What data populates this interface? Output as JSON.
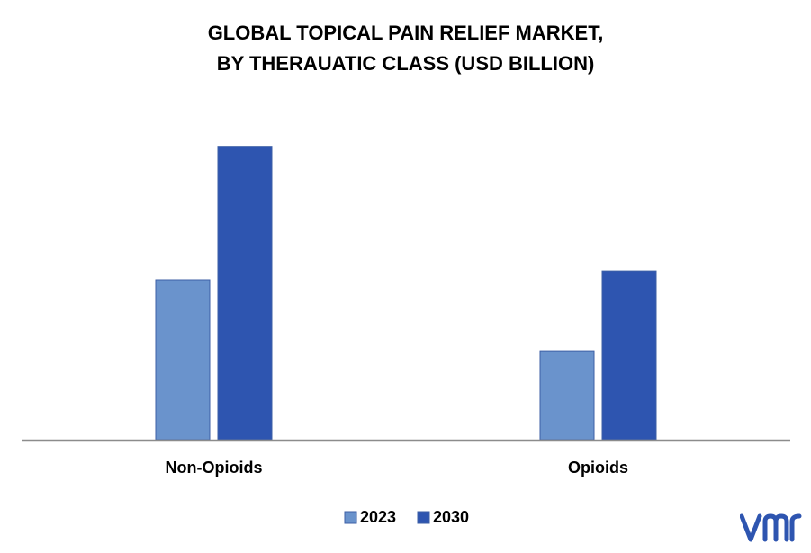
{
  "title": {
    "line1": "GLOBAL TOPICAL PAIN RELIEF MARKET,",
    "line2": "BY THERAUATIC CLASS (USD BILLION)"
  },
  "chart_data": {
    "type": "bar",
    "title": "GLOBAL TOPICAL PAIN RELIEF MARKET, BY THERAUATIC CLASS (USD BILLION)",
    "categories": [
      "Non-Opioids",
      "Opioids"
    ],
    "series": [
      {
        "name": "2023",
        "values": [
          3.6,
          2.0
        ],
        "color": "#6a93cc"
      },
      {
        "name": "2030",
        "values": [
          6.6,
          3.8
        ],
        "color": "#2e55b0"
      }
    ],
    "ylim": [
      0,
      7.2
    ],
    "grid": false,
    "legend": "bottom-center"
  },
  "logo": {
    "text": "vmr",
    "color": "#2e55b0"
  }
}
